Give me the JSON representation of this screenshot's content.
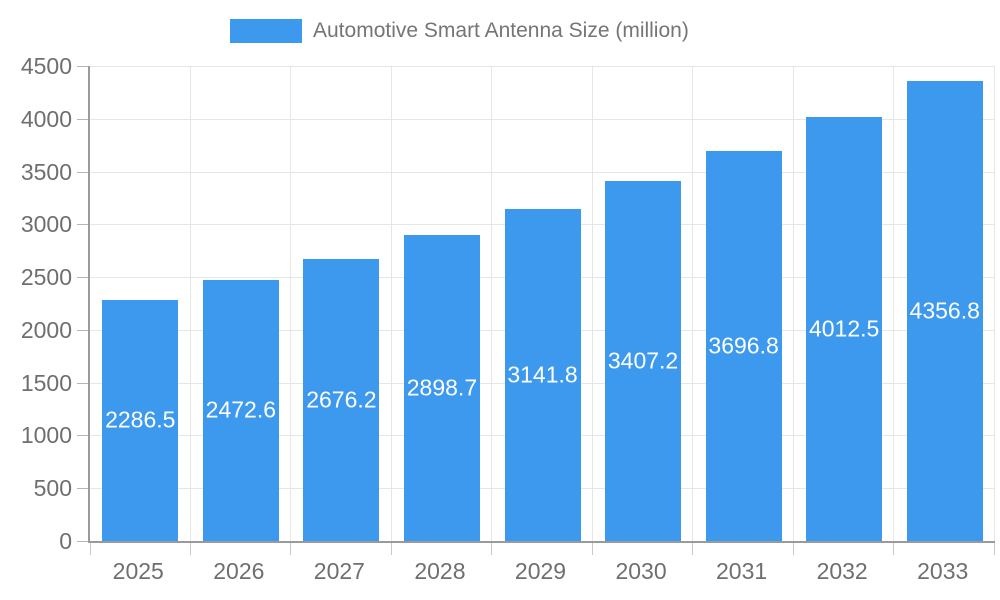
{
  "legend": {
    "label": "Automotive Smart Antenna Size (million)",
    "swatch_color": "#3d99ee"
  },
  "chart_data": {
    "type": "bar",
    "title": "Automotive Smart Antenna Size (million)",
    "categories": [
      "2025",
      "2026",
      "2027",
      "2028",
      "2029",
      "2030",
      "2031",
      "2032",
      "2033"
    ],
    "values": [
      2286.5,
      2472.6,
      2676.2,
      2898.7,
      3141.8,
      3407.2,
      3696.8,
      4012.5,
      4356.8
    ],
    "bar_labels": [
      "2286.5",
      "2472.6",
      "2676.2",
      "2898.7",
      "3141.8",
      "3407.2",
      "3696.8",
      "4012.5",
      "4356.8"
    ],
    "xlabel": "",
    "ylabel": "",
    "ylim": [
      0,
      4500
    ],
    "ytick_step": 500,
    "ytick_labels": [
      "0",
      "500",
      "1000",
      "1500",
      "2000",
      "2500",
      "3000",
      "3500",
      "4000",
      "4500"
    ],
    "grid": true,
    "legend_position": "top-center",
    "bar_color": "#3d99ee",
    "bar_label_color": "#ffffff"
  },
  "colors": {
    "bar": "#3d99ee",
    "bar_label": "#ffffff",
    "axis_line": "#9a9a9a",
    "gridline": "#e6e6e6",
    "axis_text": "#6f6f6f",
    "legend_text": "#757575",
    "background": "#ffffff"
  }
}
